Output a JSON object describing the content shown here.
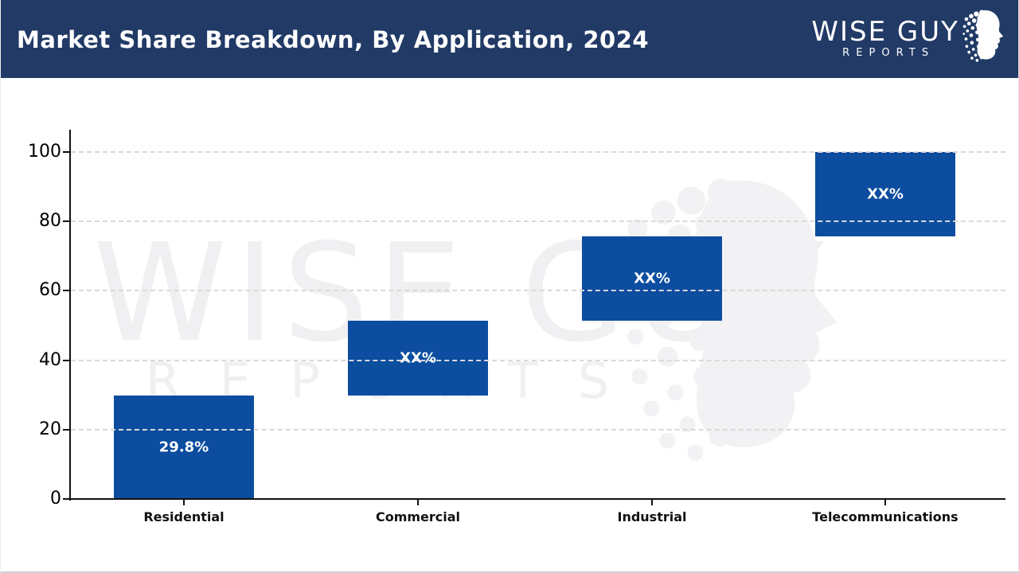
{
  "header": {
    "title": "Market Share Breakdown, By Application, 2024",
    "logo": {
      "name_line": "WISE GUY",
      "sub_line": "REPORTS"
    }
  },
  "watermark": {
    "name_line": "WISE GUY",
    "sub_line": "REPORTS"
  },
  "colors": {
    "header_bg": "#213a66",
    "bar_fill": "#0c4da0",
    "grid_line": "#d9d9d9",
    "axis_color": "#111111",
    "watermark_color": "#f0f0f3"
  },
  "chart_data": {
    "type": "bar",
    "subtype": "waterfall",
    "title": "Market Share Breakdown, By Application, 2024",
    "categories": [
      "Residential",
      "Commercial",
      "Industrial",
      "Telecommunications"
    ],
    "segments": [
      {
        "category": "Residential",
        "start": 0,
        "end": 29.8,
        "label": "29.8%"
      },
      {
        "category": "Commercial",
        "start": 29.8,
        "end": 51.4,
        "label": "XX%"
      },
      {
        "category": "Industrial",
        "start": 51.4,
        "end": 75.6,
        "label": "XX%"
      },
      {
        "category": "Telecommunications",
        "start": 75.6,
        "end": 100,
        "label": "XX%"
      }
    ],
    "yticks": [
      0,
      20,
      40,
      60,
      80,
      100
    ],
    "ylim": [
      0,
      106
    ],
    "xlabel": "",
    "ylabel": "",
    "grid": "dashed-horizontal",
    "legend": null,
    "bar_value_labels_inside": true
  }
}
